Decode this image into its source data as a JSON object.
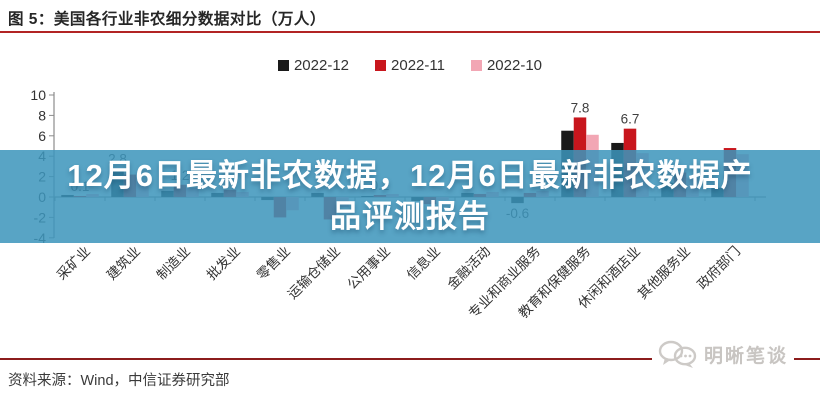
{
  "header": {
    "title": "图 5：美国各行业非农细分数据对比（万人）"
  },
  "chart_data": {
    "type": "bar",
    "title": "美国各行业非农细分数据对比（万人）",
    "categories": [
      "采矿业",
      "建筑业",
      "制造业",
      "批发业",
      "零售业",
      "运输仓储业",
      "公用事业",
      "信息业",
      "金融活动",
      "专业和商业服务",
      "教育和保健服务",
      "休闲和酒店业",
      "其他服务业",
      "政府部门"
    ],
    "series": [
      {
        "name": "2022-12",
        "color": "#1a1a1a",
        "values": [
          0.2,
          2.8,
          0.6,
          0.4,
          -0.3,
          0.4,
          0.1,
          -0.4,
          0.4,
          -0.6,
          6.5,
          5.3,
          1.4,
          0.9
        ]
      },
      {
        "name": "2022-11",
        "color": "#c8161d",
        "values": [
          0.1,
          2.2,
          1.2,
          0.7,
          -2.0,
          -2.2,
          0.2,
          -0.7,
          0.3,
          0.4,
          7.8,
          6.7,
          2.4,
          4.8
        ]
      },
      {
        "name": "2022-10",
        "color": "#f2a6b4",
        "values": [
          0.3,
          1.6,
          0.9,
          0.5,
          -1.3,
          -1.0,
          0.3,
          -0.3,
          0.5,
          0.6,
          6.1,
          4.3,
          1.9,
          4.2
        ]
      }
    ],
    "data_labels": [
      {
        "category_index": 0,
        "series": "2022-11",
        "text": "0.1"
      },
      {
        "category_index": 1,
        "series": "2022-12",
        "text": "2.8"
      },
      {
        "category_index": 2,
        "series": "2022-11",
        "text": "1.2"
      },
      {
        "category_index": 6,
        "series": "2022-11",
        "text": "0.2"
      },
      {
        "category_index": 9,
        "series": "2022-12",
        "text": "-0.6"
      },
      {
        "category_index": 10,
        "series": "2022-11",
        "text": "7.8"
      },
      {
        "category_index": 11,
        "series": "2022-11",
        "text": "6.7"
      },
      {
        "category_index": 12,
        "series": "2022-12",
        "text": "1.4"
      }
    ],
    "yticks": [
      10,
      8,
      6,
      4,
      2,
      0,
      -2,
      -4
    ],
    "ylim": [
      -4,
      10
    ],
    "xlabel": "",
    "ylabel": "",
    "grid": false,
    "legend_position": "top"
  },
  "overlay": {
    "text": "12月6日最新非农数据，12月6日最新非农数据产品评测报告"
  },
  "footer": {
    "source": "资料来源：Wind，中信证券研究部",
    "watermark": "明晰笔谈"
  },
  "colors": {
    "accent_rule_top": "#b22424",
    "accent_rule_bottom": "#8c1c1c",
    "banner": "rgba(61,149,188,0.86)",
    "axis": "#8c8c8c",
    "text": "#333333"
  }
}
